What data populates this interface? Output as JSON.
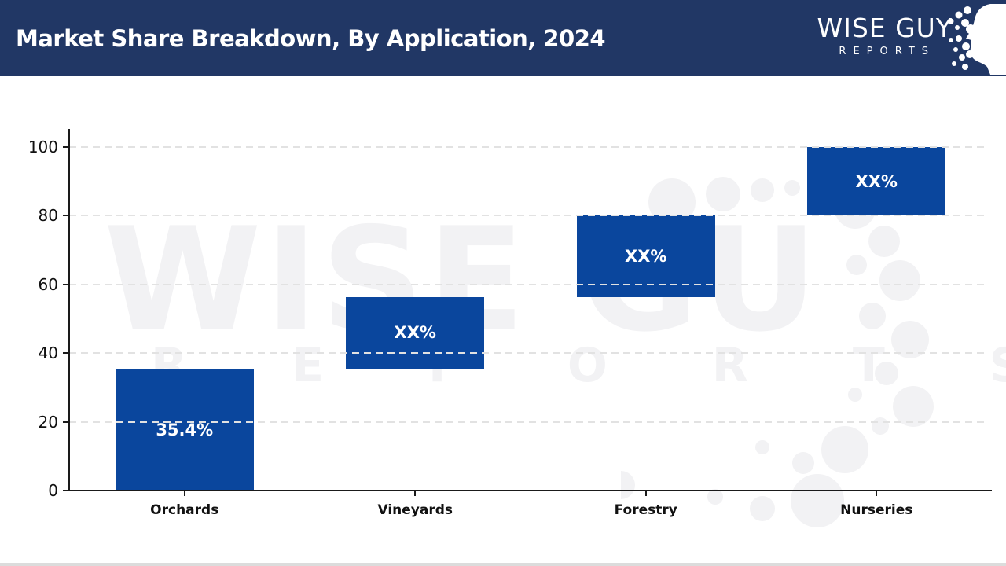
{
  "header": {
    "title": "Market Share Breakdown, By Application, 2024"
  },
  "logo": {
    "line1": "WISE GUY",
    "line2": "REPORTS"
  },
  "watermark": {
    "big_text": "WISE GU",
    "sub_text": "R E P O R T S"
  },
  "colors": {
    "header_background": "#213765",
    "bar_fill": "#0a469d",
    "bar_label": "#ffffff",
    "gridline": "#e2e2e2",
    "axis": "#1a1a1a",
    "watermark": "#f2f2f4"
  },
  "chart_data": {
    "type": "bar",
    "subtype": "waterfall-floating-bars",
    "title": "Market Share Breakdown, By Application, 2024",
    "categories": [
      "Orchards",
      "Vineyards",
      "Forestry",
      "Nurseries"
    ],
    "segments": [
      {
        "category": "Orchards",
        "start": 0,
        "end": 35.4,
        "label": "35.4%"
      },
      {
        "category": "Vineyards",
        "start": 35.4,
        "end": 56.4,
        "label": "XX%"
      },
      {
        "category": "Forestry",
        "start": 56.4,
        "end": 80.0,
        "label": "XX%"
      },
      {
        "category": "Nurseries",
        "start": 80.0,
        "end": 100.0,
        "label": "XX%"
      }
    ],
    "xlabel": "",
    "ylabel": "",
    "ylim": [
      0,
      100
    ],
    "yticks": [
      0,
      20,
      40,
      60,
      80,
      100
    ],
    "grid": "horizontal dashed, drawn over bars",
    "legend": "none",
    "bar_color": "#0a469d",
    "value_label_color": "#ffffff"
  }
}
